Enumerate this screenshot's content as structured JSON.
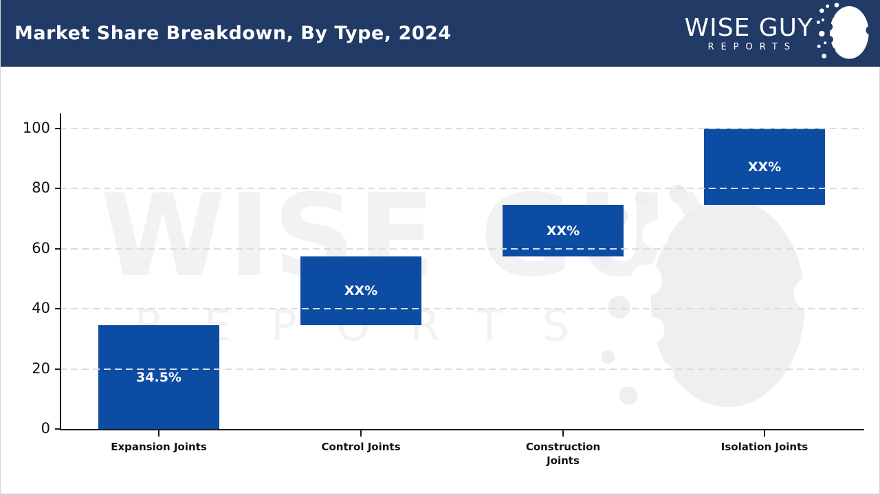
{
  "header": {
    "title": "Market Share Breakdown, By Type, 2024",
    "bg_color": "#223A66",
    "logo": {
      "wordmark": "WISE GUY",
      "subtitle": "REPORTS"
    }
  },
  "watermark": {
    "wordmark": "WISE GUY",
    "subtitle": "REPORTS"
  },
  "chart_data": {
    "type": "bar",
    "subtype": "floating-range-waterfall",
    "title": "Market Share Breakdown, By Type, 2024",
    "categories": [
      "Expansion Joints",
      "Control Joints",
      "Construction Joints",
      "Isolation Joints"
    ],
    "series": [
      {
        "name": "Market Share (%)",
        "ranges": [
          [
            0,
            34.5
          ],
          [
            34.5,
            57.5
          ],
          [
            57.5,
            74.5
          ],
          [
            74.5,
            100
          ]
        ],
        "labels": [
          "34.5%",
          "XX%",
          "XX%",
          "XX%"
        ]
      }
    ],
    "ylim": [
      0,
      100
    ],
    "yticks": [
      0,
      20,
      40,
      60,
      80,
      100
    ],
    "xlabel": "",
    "ylabel": "",
    "grid": "horizontal-dashed",
    "legend": "none",
    "bar_color": "#0C4CA3",
    "bar_label_color": "#FFFFFF",
    "gridline_color": "#DCDCDC",
    "axis_color": "#1A1A1A"
  }
}
